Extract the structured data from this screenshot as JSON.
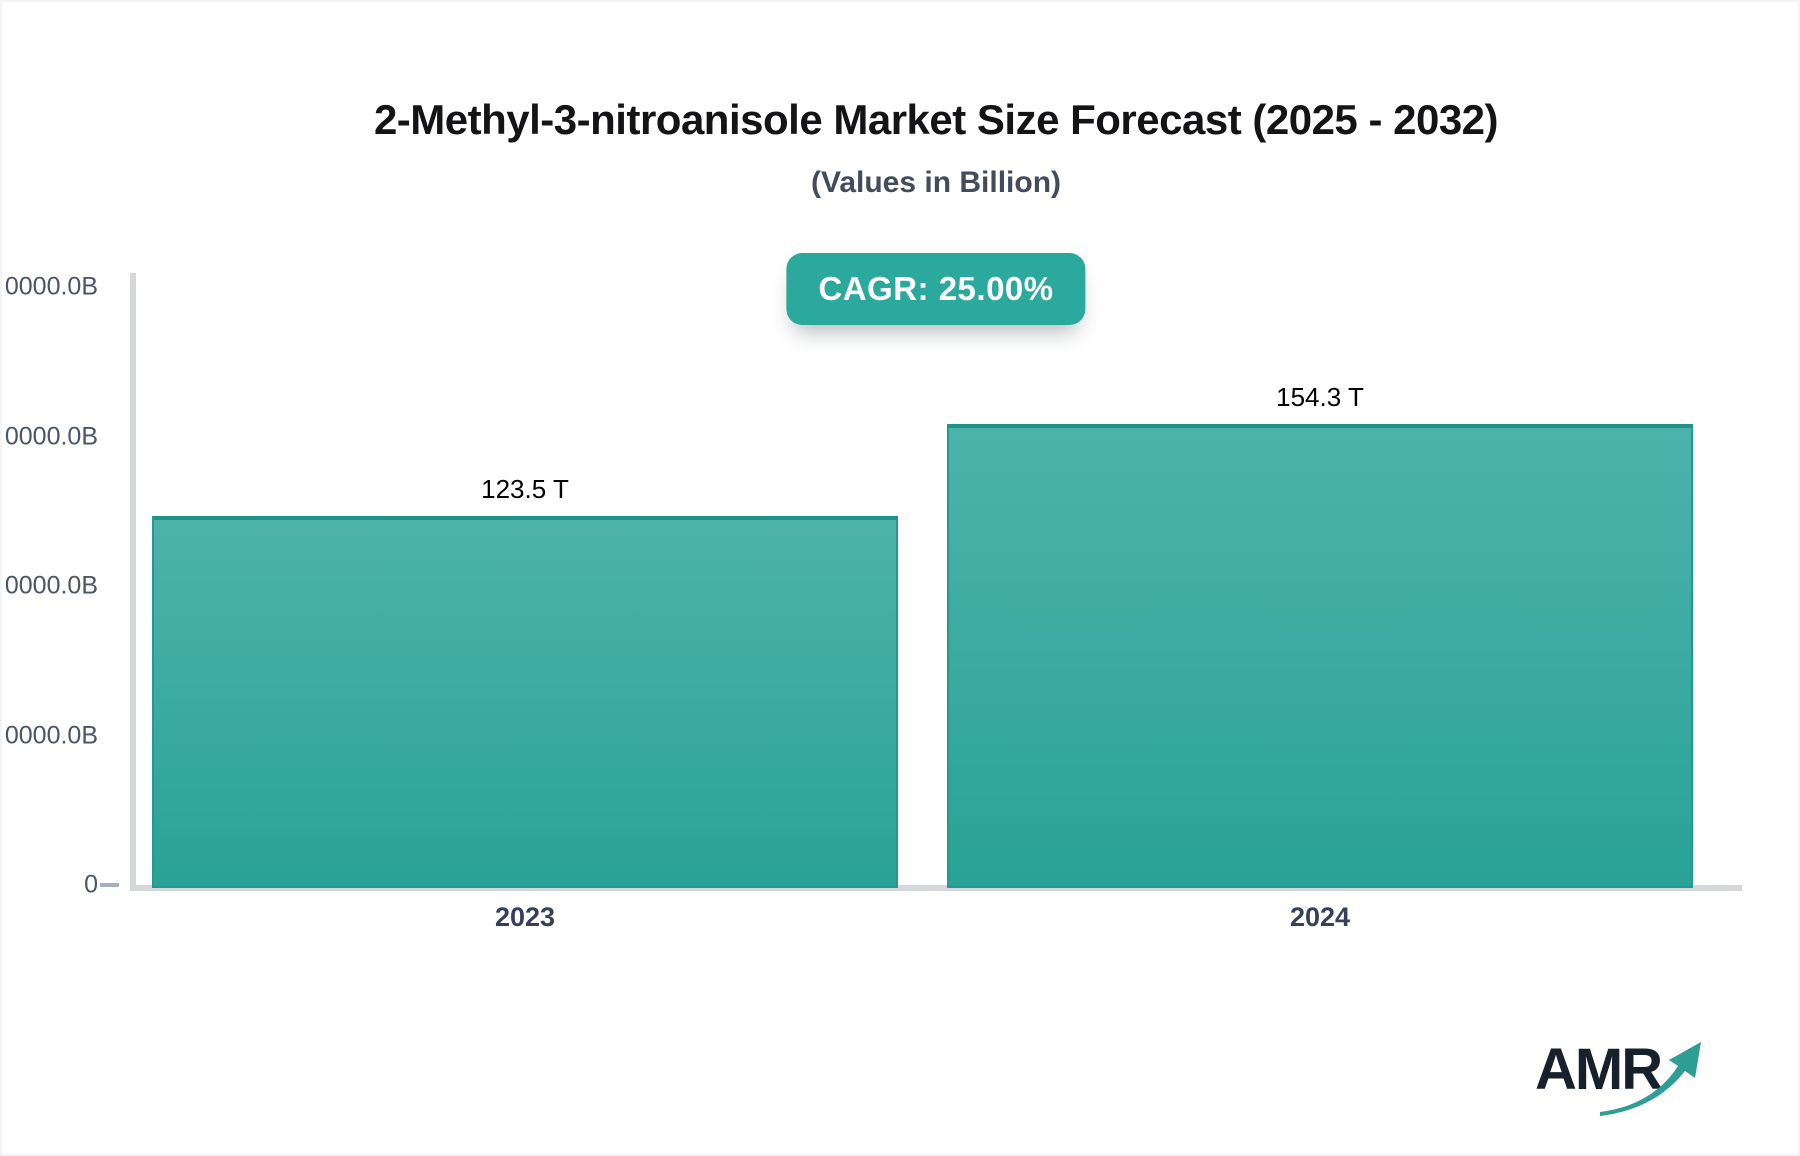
{
  "header": {
    "cagr_badge_label": "CAGR: 25.00%"
  },
  "chart_data": {
    "type": "bar",
    "title": "2-Methyl-3-nitroanisole Market Size Forecast (2025 - 2032)",
    "subtitle": "(Values in Billion)",
    "categories": [
      "2023",
      "2024"
    ],
    "values": [
      123.5,
      154.3
    ],
    "value_labels": [
      "123.5 T",
      "154.3 T"
    ],
    "unit": "T",
    "cagr_percent": "25.00%",
    "xlabel": "",
    "ylabel": "",
    "ylim": [
      0,
      205
    ],
    "grid": false,
    "legend": "none",
    "y_axis": {
      "tick_labels_visible_bottom_to_top": [
        "0",
        "0000.0B",
        "0000.0B",
        "0000.0B",
        "0000.0B"
      ]
    },
    "colors": {
      "bar_gradient_top": "#4db3aa",
      "bar_gradient_bottom": "#2aa296",
      "bar_border": "#23998f",
      "bar_border_top": "#1f9289",
      "axis_line": "#d5d7dd",
      "badge_background": "#2ba99c",
      "y_label_color": "#4b5566",
      "x_label_color": "#36405a"
    }
  },
  "logo": {
    "text": "AMR",
    "text_color": "#17212b",
    "arrow_color": "#2e9d93"
  }
}
